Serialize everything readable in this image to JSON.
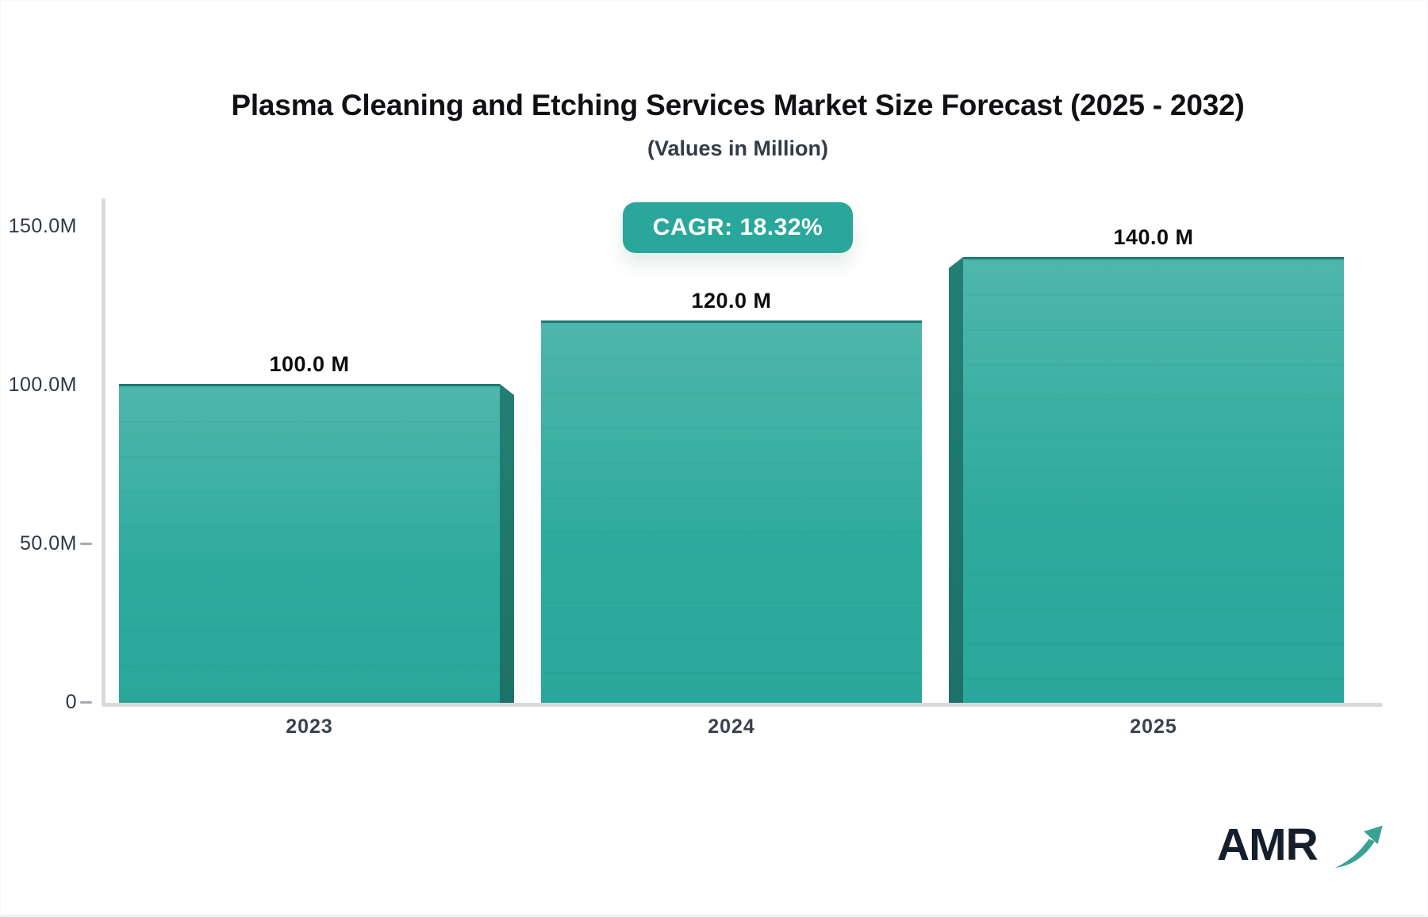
{
  "header": {
    "title": "Plasma Cleaning and Etching Services Market Size Forecast (2025 - 2032)",
    "subtitle": "(Values in Million)"
  },
  "badge": {
    "label": "CAGR: 18.32%"
  },
  "chart_data": {
    "type": "bar",
    "title": "Plasma Cleaning and Etching Services Market Size Forecast (2025 - 2032)",
    "subtitle": "(Values in Million)",
    "unit": "Million",
    "categories": [
      "2023",
      "2024",
      "2025"
    ],
    "values": [
      100.0,
      120.0,
      140.0
    ],
    "value_labels": [
      "100.0 M",
      "120.0 M",
      "140.0 M"
    ],
    "cagr_label": "CAGR: 18.32%",
    "ylim": [
      0,
      150
    ],
    "y_ticks": [
      {
        "value": 0,
        "label": "0",
        "dash": true
      },
      {
        "value": 50,
        "label": "50.0M",
        "dash": true
      },
      {
        "value": 100,
        "label": "100.0M",
        "dash": false
      },
      {
        "value": 150,
        "label": "150.0M",
        "dash": false
      }
    ],
    "grid": false,
    "legend": false,
    "bar_bevels": [
      "right",
      "none",
      "left"
    ],
    "colors": {
      "bar_gradient_top": "#4fb6ac",
      "bar_gradient_bottom": "#29a79a",
      "bar_top_edge": "#1a7c72",
      "bar_bevel": "#20786d",
      "axis_line": "#d8dade",
      "badge_background": "#2aa79b",
      "badge_text": "#ffffff",
      "value_label_text": "#0b0c0e",
      "tick_label_text": "#2f3842",
      "logo_navy": "#141f2b",
      "logo_teal": "#38a294"
    }
  },
  "logo": {
    "text": "AMR",
    "arrow_icon": "growth-arrow-icon"
  }
}
